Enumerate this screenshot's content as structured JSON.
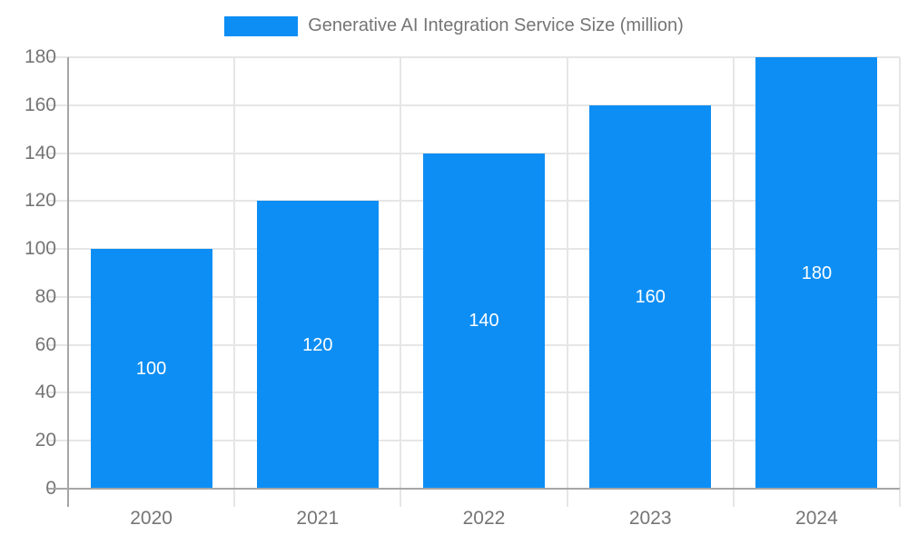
{
  "legend": {
    "label": "Generative AI Integration Service Size (million)"
  },
  "chart_data": {
    "type": "bar",
    "title": "Generative AI Integration Service Size (million)",
    "categories": [
      "2020",
      "2021",
      "2022",
      "2023",
      "2024"
    ],
    "series": [
      {
        "name": "Generative AI Integration Service Size (million)",
        "values": [
          100,
          120,
          140,
          160,
          180
        ]
      }
    ],
    "data_labels": [
      "100",
      "120",
      "140",
      "160",
      "180"
    ],
    "data_label_position": "inside-center",
    "xlabel": "",
    "ylabel": "",
    "ylim": [
      0,
      180
    ],
    "y_ticks": [
      0,
      20,
      40,
      60,
      80,
      100,
      120,
      140,
      160,
      180
    ],
    "grid": "horizontal and vertical light gridlines",
    "legend_position": "top-center"
  },
  "colors": {
    "bar": "#0d8ef4",
    "data_label_text": "#ffffff",
    "axis_line": "#a6a6a6",
    "gridline": "#e6e6e6",
    "tick_text": "#757575",
    "legend_text": "#757575",
    "background": "#ffffff"
  }
}
